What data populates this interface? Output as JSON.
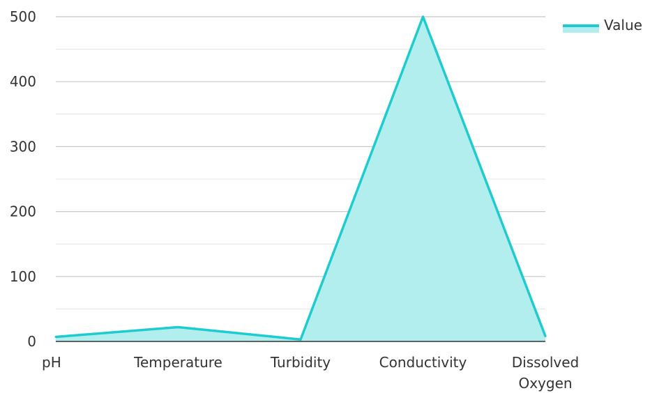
{
  "chart_data": {
    "type": "area",
    "categories": [
      "pH",
      "Temperature",
      "Turbidity",
      "Conductivity",
      "Dissolved Oxygen"
    ],
    "series": [
      {
        "name": "Value",
        "values": [
          7,
          22,
          3,
          500,
          8
        ]
      }
    ],
    "title": "",
    "xlabel": "",
    "ylabel": "",
    "ylim": [
      0,
      500
    ],
    "yticks": [
      0,
      100,
      200,
      300,
      400,
      500
    ],
    "grid": true,
    "legend": "top-right",
    "colors": {
      "line": "#1ecbcf",
      "fill": "#b2eeee",
      "grid_major": "#c8c8c8",
      "grid_minor": "#e4e4e4",
      "axis": "#333333"
    }
  }
}
